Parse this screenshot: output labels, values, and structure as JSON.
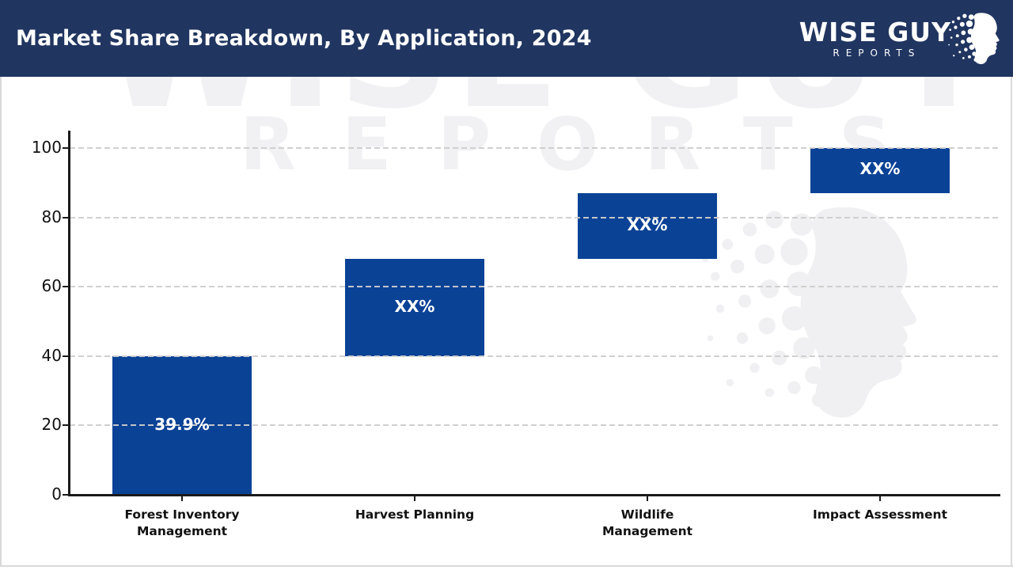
{
  "header": {
    "title": "Market Share Breakdown, By Application, 2024",
    "brand": {
      "name": "WISE GUY",
      "sub": "REPORTS"
    }
  },
  "watermark": {
    "line1": "WISE GUY",
    "line2": "REPORTS"
  },
  "colors": {
    "header_bg": "#203560",
    "bar": "#0a4296",
    "bar_label": "#ffffff",
    "gridline": "#d8d8d8",
    "axis": "#1a1a1a",
    "watermark": "#f1f1f3"
  },
  "chart_data": {
    "type": "bar",
    "subtype": "waterfall",
    "title": "Market Share Breakdown, By Application, 2024",
    "categories": [
      "Forest Inventory Management",
      "Harvest Planning",
      "Wildlife Management",
      "Impact Assessment"
    ],
    "category_lines": [
      [
        "Forest Inventory",
        "Management"
      ],
      [
        "Harvest Planning"
      ],
      [
        "Wildlife",
        "Management"
      ],
      [
        "Impact Assessment"
      ]
    ],
    "bars": [
      {
        "category": "Forest Inventory Management",
        "start": 0,
        "end": 39.9,
        "label": "39.9%"
      },
      {
        "category": "Harvest Planning",
        "start": 39.9,
        "end": 68,
        "label": "XX%"
      },
      {
        "category": "Wildlife Management",
        "start": 68,
        "end": 87,
        "label": "XX%"
      },
      {
        "category": "Impact Assessment",
        "start": 87,
        "end": 100,
        "label": "XX%"
      }
    ],
    "ylim": [
      0,
      105
    ],
    "yticks": [
      0,
      20,
      40,
      60,
      80,
      100
    ],
    "grid": "dashed-horizontal",
    "legend": "none"
  }
}
